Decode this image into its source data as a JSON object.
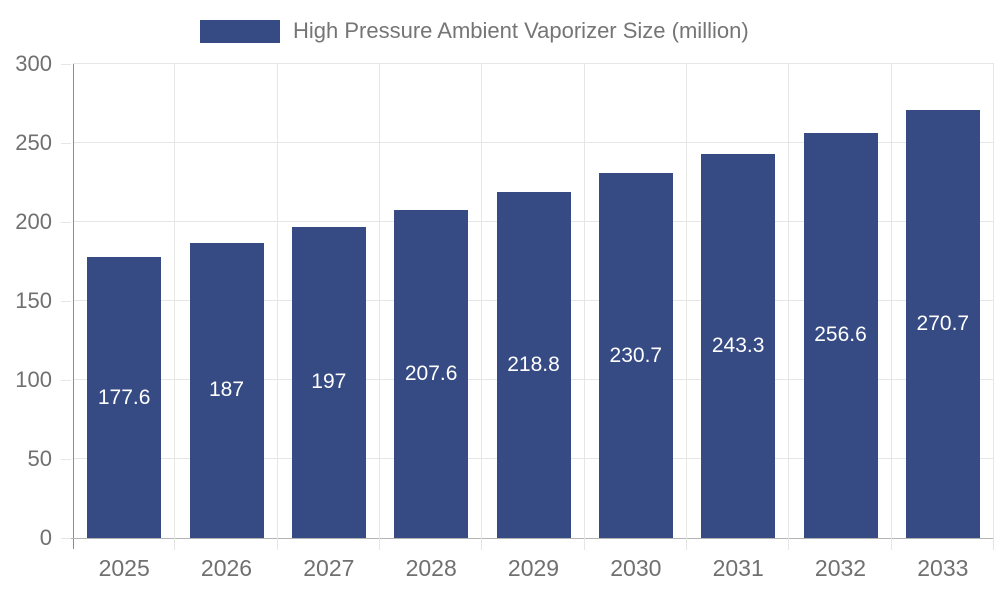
{
  "chart_data": {
    "type": "bar",
    "title": "High Pressure Ambient Vaporizer Size (million)",
    "legend": {
      "label": "High Pressure Ambient Vaporizer Size (million)",
      "position": "top"
    },
    "categories": [
      "2025",
      "2026",
      "2027",
      "2028",
      "2029",
      "2030",
      "2031",
      "2032",
      "2033"
    ],
    "values": [
      177.6,
      187,
      197,
      207.6,
      218.8,
      230.7,
      243.3,
      256.6,
      270.7
    ],
    "xlabel": "",
    "ylabel": "",
    "ylim": [
      0,
      300
    ],
    "yticks": [
      0,
      50,
      100,
      150,
      200,
      250,
      300
    ],
    "grid": true,
    "value_labels": "inside-center",
    "colors": {
      "bar": "#364a84",
      "value_label": "#ffffff",
      "axis_text": "#707070",
      "legend_text": "#757575",
      "grid": "#e6e6e6",
      "y_axis_line": "#8c8c8c",
      "x_axis_line": "#b3b3b3"
    }
  }
}
